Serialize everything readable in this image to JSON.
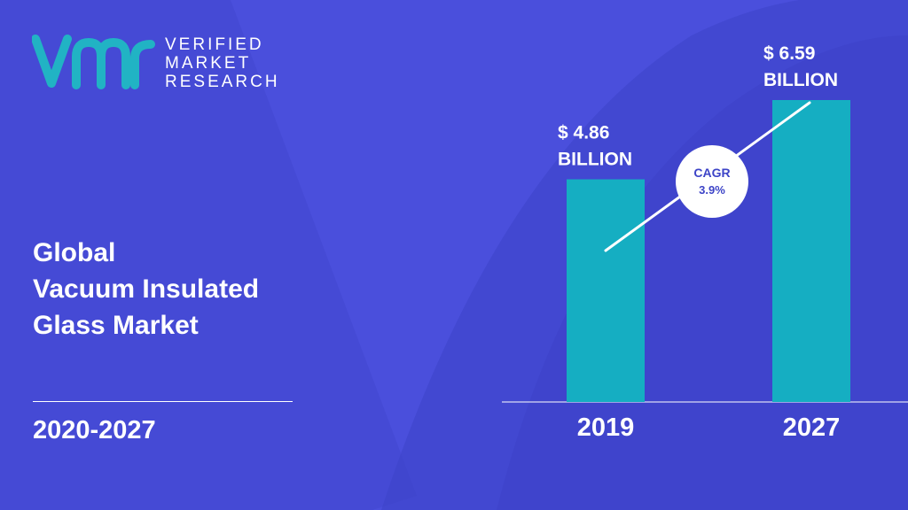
{
  "brand": {
    "line1": "VERIFIED",
    "line2": "MARKET",
    "line3": "RESEARCH"
  },
  "title": {
    "line1": "Global",
    "line2": "Vacuum Insulated",
    "line3": "Glass Market"
  },
  "period": "2020-2027",
  "colors": {
    "background": "#4a4fdc",
    "bar": "#15aec2",
    "text": "#ffffff",
    "logo": "#21b3c4",
    "cagr_text": "#3d44c7"
  },
  "chart_data": {
    "type": "bar",
    "categories": [
      "2019",
      "2027"
    ],
    "values": [
      4.86,
      6.59
    ],
    "value_labels": [
      [
        "$ 4.86",
        "BILLION"
      ],
      [
        "$ 6.59",
        "BILLION"
      ]
    ],
    "cagr": {
      "label": "CAGR",
      "value": "3.9%"
    }
  }
}
